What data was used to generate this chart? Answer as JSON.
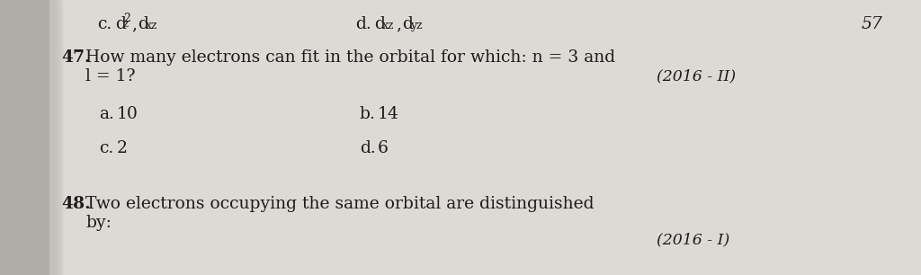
{
  "bg_color": "#d8d5d0",
  "text_color": "#1c1c1c",
  "top_line_c_label": "c.",
  "top_line_d_label": "d.",
  "top_line_c_d1": "d",
  "top_line_c_dsub1": "z",
  "top_line_c_dsup1": "2",
  "top_line_c_comma": ",",
  "top_line_c_d2": "d",
  "top_line_c_dsub2": "xz",
  "top_line_d_d1": "d",
  "top_line_d_dsub1": "xz",
  "top_line_d_comma": ",",
  "top_line_d_d2": "d",
  "top_line_d_dsub2": "yz",
  "page_num": "57",
  "q47_num": "47.",
  "q47_line1": "How many electrons can fit in the orbital for which: n = 3 and",
  "q47_line2": "l = 1?",
  "q47_year": "(2016 - II)",
  "opt_a_label": "a.",
  "opt_a_val": "10",
  "opt_b_label": "b.",
  "opt_b_val": "14",
  "opt_c_label": "c.",
  "opt_c_val": "2",
  "opt_d_label": "d.",
  "opt_d_val": "6",
  "q48_num": "48.",
  "q48_line1": "Two electrons occupying the same orbital are distinguished",
  "q48_line2": "by:",
  "q48_year": "(2016 - I)",
  "left_page_color": "#b8b5b0",
  "right_page_color": "#e8e5e0"
}
